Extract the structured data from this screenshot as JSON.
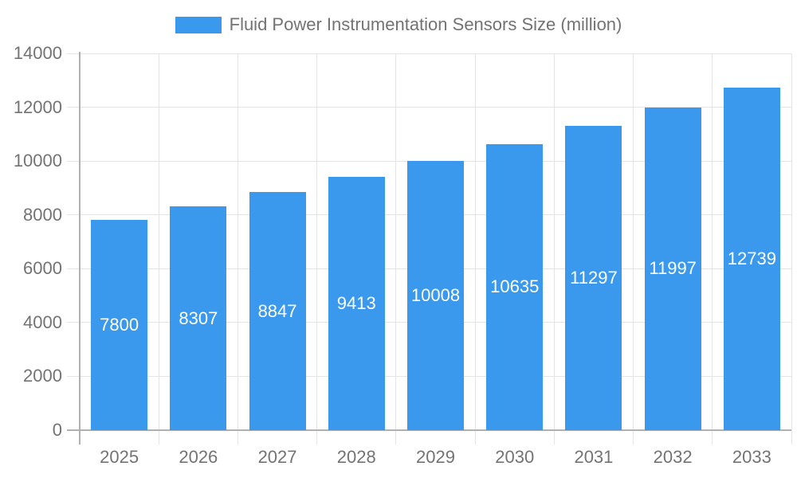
{
  "legend": {
    "label": "Fluid Power Instrumentation Sensors Size (million)"
  },
  "chart_data": {
    "type": "bar",
    "title": "Fluid Power Instrumentation Sensors Size (million)",
    "categories": [
      "2025",
      "2026",
      "2027",
      "2028",
      "2029",
      "2030",
      "2031",
      "2032",
      "2033"
    ],
    "values": [
      7800,
      8307,
      8847,
      9413,
      10008,
      10635,
      11297,
      11997,
      12739
    ],
    "value_labels": [
      "7800",
      "8307",
      "8847",
      "9413",
      "10008",
      "10635",
      "11297",
      "11997",
      "12739"
    ],
    "xlabel": "",
    "ylabel": "",
    "ylim": [
      0,
      14000
    ],
    "yticks": [
      0,
      2000,
      4000,
      6000,
      8000,
      10000,
      12000,
      14000
    ],
    "grid": true,
    "legend_position": "top-center",
    "colors": {
      "bar": "#3A99ED",
      "grid": "#E4E4E4",
      "axis": "#B0B0B0",
      "tick_text": "#737373",
      "value_label_text": "#FFFFFF",
      "background": "#FFFFFF"
    }
  }
}
